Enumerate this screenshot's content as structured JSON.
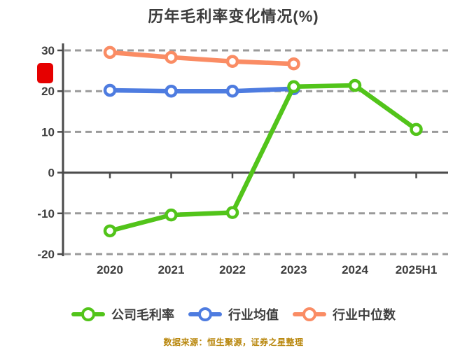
{
  "page": {
    "background": "#ffffff"
  },
  "header": {
    "title": "历年毛利率变化情况(%)"
  },
  "y_axis_badge": {
    "color": "#e60000"
  },
  "footer": {
    "source_note": "数据来源：恒生聚源，证券之星整理"
  },
  "chart_data": {
    "type": "line",
    "title": "历年毛利率变化情况(%)",
    "categories": [
      "2020",
      "2021",
      "2022",
      "2023",
      "2024",
      "2025H1"
    ],
    "series": [
      {
        "name": "公司毛利率",
        "color": "#52c41a",
        "values": [
          -14.3,
          -10.4,
          -9.8,
          21.1,
          21.4,
          10.6
        ]
      },
      {
        "name": "行业均值",
        "color": "#4e7ce0",
        "values": [
          20.2,
          20.0,
          20.0,
          20.6,
          null,
          null
        ]
      },
      {
        "name": "行业中位数",
        "color": "#fa8c64",
        "values": [
          29.5,
          28.3,
          27.3,
          26.7,
          null,
          null
        ]
      }
    ],
    "ylim": [
      -20,
      30
    ],
    "yticks": [
      30,
      20,
      10,
      0,
      -10,
      -20
    ],
    "xlabel": "",
    "ylabel": "",
    "grid": "horizontal dashed",
    "legend_position": "bottom",
    "marker": "circle-white-fill"
  }
}
